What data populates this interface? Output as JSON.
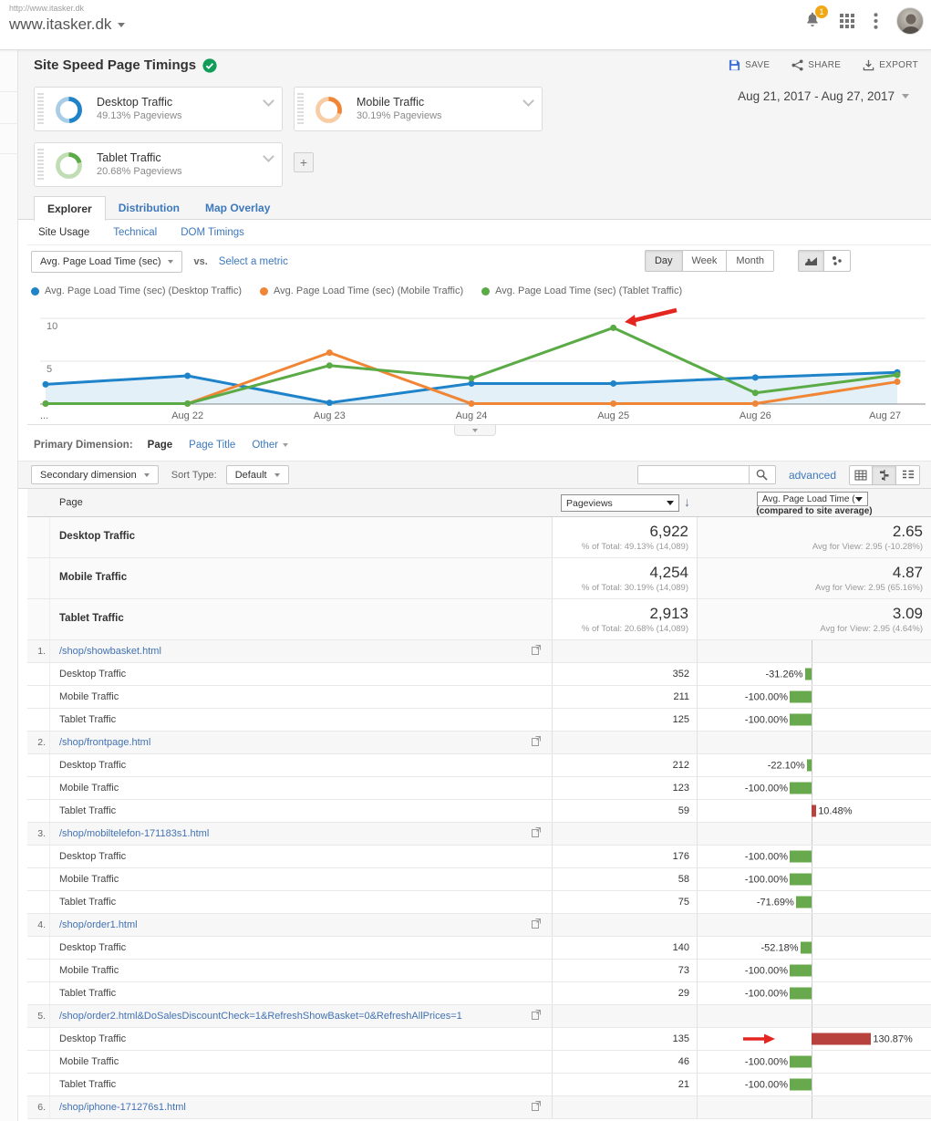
{
  "account": {
    "url": "http://www.itasker.dk",
    "name": "www.itasker.dk"
  },
  "topbar": {
    "notification_count": "1"
  },
  "report": {
    "title": "Site Speed Page Timings",
    "actions": {
      "save": "SAVE",
      "share": "SHARE",
      "export": "EXPORT"
    },
    "date_range": "Aug 21, 2017 - Aug 27, 2017"
  },
  "segments": [
    {
      "name": "Desktop Traffic",
      "detail": "49.13% Pageviews",
      "pct": 49.13,
      "color": "#1e83c9",
      "tint": "#a9cde6"
    },
    {
      "name": "Mobile Traffic",
      "detail": "30.19% Pageviews",
      "pct": 30.19,
      "color": "#f08536",
      "tint": "#f8cda6"
    },
    {
      "name": "Tablet Traffic",
      "detail": "20.68% Pageviews",
      "pct": 20.68,
      "color": "#5aab46",
      "tint": "#c0ddb4"
    }
  ],
  "add_segment_label": "+",
  "tabs": [
    {
      "label": "Explorer",
      "active": true
    },
    {
      "label": "Distribution",
      "active": false
    },
    {
      "label": "Map Overlay",
      "active": false
    }
  ],
  "subtabs": [
    {
      "label": "Site Usage",
      "active": true
    },
    {
      "label": "Technical",
      "active": false
    },
    {
      "label": "DOM Timings",
      "active": false
    }
  ],
  "controls": {
    "metric_select": "Avg. Page Load Time (sec)",
    "vs_label": "vs.",
    "select_metric_link": "Select a metric",
    "granularity": [
      {
        "label": "Day",
        "active": true
      },
      {
        "label": "Week",
        "active": false
      },
      {
        "label": "Month",
        "active": false
      }
    ]
  },
  "chart_data": {
    "type": "line",
    "x": [
      "...",
      "Aug 22",
      "Aug 23",
      "Aug 24",
      "Aug 25",
      "Aug 26",
      "Aug 27"
    ],
    "ylim": [
      0,
      10
    ],
    "yticks": [
      5,
      10
    ],
    "grid": true,
    "legend_position": "top",
    "series": [
      {
        "name": "Avg. Page Load Time (sec) (Desktop Traffic)",
        "color": "#1e83c9",
        "fill": true,
        "values": [
          2.3,
          3.3,
          0.15,
          2.4,
          2.4,
          3.1,
          3.7
        ]
      },
      {
        "name": "Avg. Page Load Time (sec) (Mobile Traffic)",
        "color": "#f08536",
        "fill": false,
        "values": [
          0.05,
          0.05,
          6.0,
          0.05,
          0.05,
          0.05,
          2.6
        ]
      },
      {
        "name": "Avg. Page Load Time (sec) (Tablet Traffic)",
        "color": "#5aab46",
        "fill": false,
        "values": [
          0.05,
          0.05,
          4.5,
          3.0,
          8.9,
          1.3,
          3.4
        ]
      }
    ],
    "annotation": {
      "type": "red-arrow",
      "target_x": "Aug 25",
      "target_series": "Tablet Traffic"
    }
  },
  "primary_dimension": {
    "label": "Primary Dimension:",
    "options": [
      {
        "label": "Page",
        "active": true,
        "chevron": false
      },
      {
        "label": "Page Title",
        "active": false,
        "chevron": false
      },
      {
        "label": "Other",
        "active": false,
        "chevron": true
      }
    ]
  },
  "toolbar": {
    "secondary_dimension": "Secondary dimension",
    "sort_type_label": "Sort Type:",
    "sort_type_value": "Default",
    "search_value": "",
    "advanced_link": "advanced"
  },
  "table": {
    "columns": {
      "page": "Page",
      "pageviews": "Pageviews",
      "metric": "Avg. Page Load Time (sec)",
      "metric_sub": "(compared to site average)"
    },
    "summary": [
      {
        "label": "Desktop Traffic",
        "pageviews": "6,922",
        "pv_note": "% of Total: 49.13% (14,089)",
        "metric": "2.65",
        "metric_note": "Avg for View: 2.95 (-10.28%)"
      },
      {
        "label": "Mobile Traffic",
        "pageviews": "4,254",
        "pv_note": "% of Total: 30.19% (14,089)",
        "metric": "4.87",
        "metric_note": "Avg for View: 2.95 (65.16%)"
      },
      {
        "label": "Tablet Traffic",
        "pageviews": "2,913",
        "pv_note": "% of Total: 20.68% (14,089)",
        "metric": "3.09",
        "metric_note": "Avg for View: 2.95 (4.64%)"
      }
    ],
    "groups": [
      {
        "index": "1.",
        "url": "/shop/showbasket.html",
        "rows": [
          {
            "label": "Desktop Traffic",
            "pageviews": "352",
            "delta": -31.26,
            "delta_label": "-31.26%"
          },
          {
            "label": "Mobile Traffic",
            "pageviews": "211",
            "delta": -100,
            "delta_label": "-100.00%"
          },
          {
            "label": "Tablet Traffic",
            "pageviews": "125",
            "delta": -100,
            "delta_label": "-100.00%"
          }
        ]
      },
      {
        "index": "2.",
        "url": "/shop/frontpage.html",
        "rows": [
          {
            "label": "Desktop Traffic",
            "pageviews": "212",
            "delta": -22.1,
            "delta_label": "-22.10%"
          },
          {
            "label": "Mobile Traffic",
            "pageviews": "123",
            "delta": -100,
            "delta_label": "-100.00%"
          },
          {
            "label": "Tablet Traffic",
            "pageviews": "59",
            "delta": 10.48,
            "delta_label": "10.48%"
          }
        ]
      },
      {
        "index": "3.",
        "url": "/shop/mobiltelefon-171183s1.html",
        "rows": [
          {
            "label": "Desktop Traffic",
            "pageviews": "176",
            "delta": -100,
            "delta_label": "-100.00%"
          },
          {
            "label": "Mobile Traffic",
            "pageviews": "58",
            "delta": -100,
            "delta_label": "-100.00%"
          },
          {
            "label": "Tablet Traffic",
            "pageviews": "75",
            "delta": -71.69,
            "delta_label": "-71.69%"
          }
        ]
      },
      {
        "index": "4.",
        "url": "/shop/order1.html",
        "rows": [
          {
            "label": "Desktop Traffic",
            "pageviews": "140",
            "delta": -52.18,
            "delta_label": "-52.18%"
          },
          {
            "label": "Mobile Traffic",
            "pageviews": "73",
            "delta": -100,
            "delta_label": "-100.00%"
          },
          {
            "label": "Tablet Traffic",
            "pageviews": "29",
            "delta": -100,
            "delta_label": "-100.00%"
          }
        ]
      },
      {
        "index": "5.",
        "url": "/shop/order2.html&DoSalesDiscountCheck=1&RefreshShowBasket=0&RefreshAllPrices=1",
        "rows": [
          {
            "label": "Desktop Traffic",
            "pageviews": "135",
            "delta": 130.87,
            "delta_label": "130.87%",
            "arrow": true
          },
          {
            "label": "Mobile Traffic",
            "pageviews": "46",
            "delta": -100,
            "delta_label": "-100.00%"
          },
          {
            "label": "Tablet Traffic",
            "pageviews": "21",
            "delta": -100,
            "delta_label": "-100.00%"
          }
        ]
      },
      {
        "index": "6.",
        "url": "/shop/iphone-171276s1.html",
        "rows": []
      }
    ]
  },
  "colors": {
    "bar_green": "#68a94e",
    "bar_red": "#b8433e",
    "arrow_red": "#e52620",
    "link_blue": "#3d78bd"
  }
}
